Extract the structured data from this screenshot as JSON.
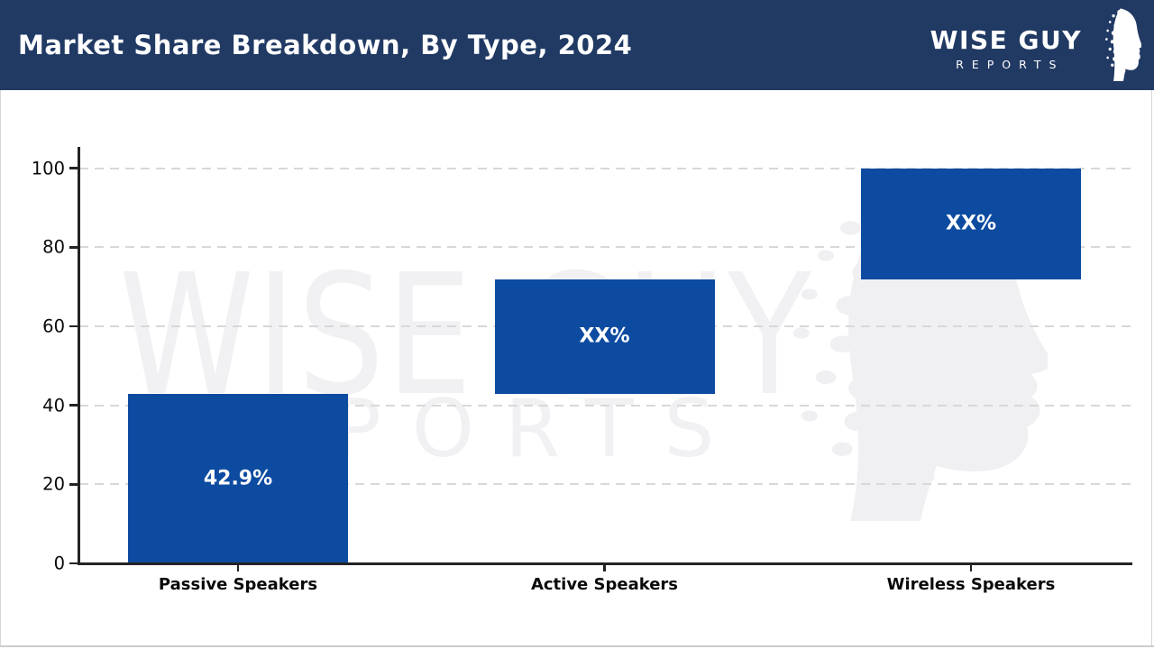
{
  "header": {
    "title": "Market Share Breakdown, By Type, 2024",
    "bg_color": "#213A64",
    "logo": {
      "line1": "WISE GUY",
      "line2": "REPORTS"
    }
  },
  "watermark": {
    "line1": "WISE GUY",
    "line2": "REPORTS"
  },
  "chart_data": {
    "type": "bar",
    "subtype": "waterfall",
    "title": "Market Share Breakdown, By Type, 2024",
    "categories": [
      "Passive Speakers",
      "Active Speakers",
      "Wireless Speakers"
    ],
    "series": [
      {
        "name": "Market Share (%)",
        "segments": [
          {
            "category": "Passive Speakers",
            "start": 0,
            "end": 42.9,
            "label": "42.9%"
          },
          {
            "category": "Active Speakers",
            "start": 42.9,
            "end": 71.9,
            "label": "XX%"
          },
          {
            "category": "Wireless Speakers",
            "start": 71.9,
            "end": 100,
            "label": "XX%"
          }
        ]
      }
    ],
    "yticks": [
      0,
      20,
      40,
      60,
      80,
      100
    ],
    "ylim": [
      0,
      105
    ],
    "xlabel": "",
    "ylabel": "",
    "grid": "horizontal-dashed",
    "legend": "none",
    "bar_color": "#0D4BA0",
    "bar_label_color": "#FFFFFF",
    "grid_color": "#D8D8D8",
    "axis_color": "#232323"
  }
}
